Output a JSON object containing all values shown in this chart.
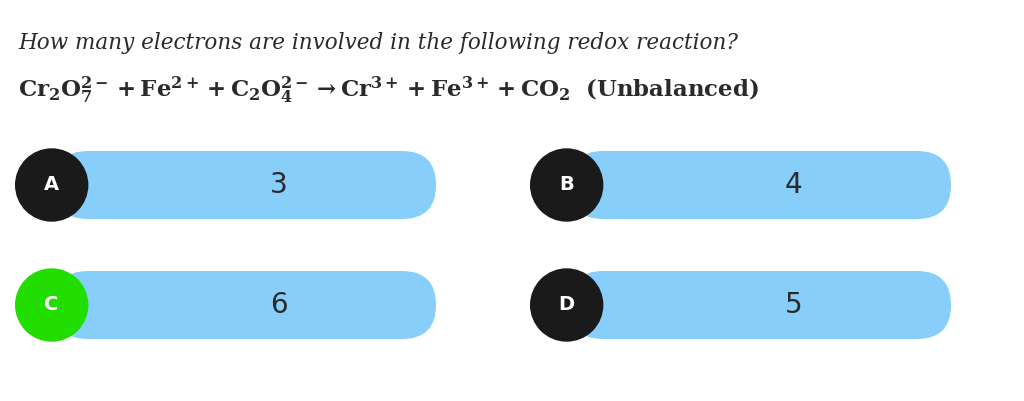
{
  "background_color": "#ffffff",
  "title_line1": "How many electrons are involved in the following redox reaction?",
  "options": [
    {
      "label": "A",
      "value": "3",
      "bar_color": "#87CEFA",
      "label_bg": "#1a1a1a"
    },
    {
      "label": "B",
      "value": "4",
      "bar_color": "#87CEFA",
      "label_bg": "#1a1a1a"
    },
    {
      "label": "C",
      "value": "6",
      "bar_color": "#87CEFA",
      "label_bg": "#22dd00"
    },
    {
      "label": "D",
      "value": "5",
      "bar_color": "#87CEFA",
      "label_bg": "#1a1a1a"
    }
  ],
  "text_color": "#2a2a2a",
  "title_fontsize": 15.5,
  "option_fontsize": 20,
  "label_fontsize": 14
}
